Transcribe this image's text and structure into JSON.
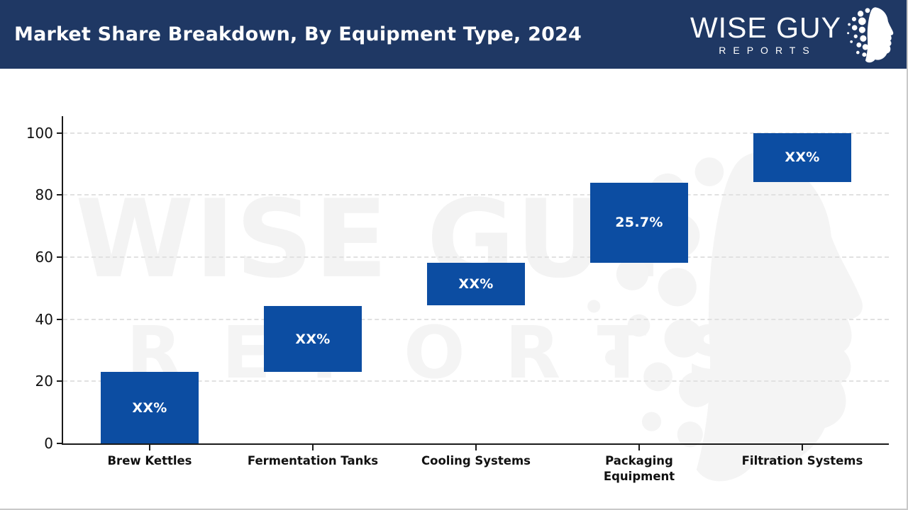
{
  "header": {
    "title": "Market Share Breakdown, By Equipment Type, 2024",
    "logo": {
      "line1": "WISE GUY",
      "line2": "REPORTS"
    }
  },
  "watermark": {
    "line1": "WISE GUY",
    "line2": "REPORTS"
  },
  "colors": {
    "header_bg": "#1f3864",
    "bar": "#0c4da2",
    "bar_label": "#ffffff",
    "axis": "#1a1a1a",
    "grid": "#e1e1e1",
    "watermark": "#f4f4f4"
  },
  "chart_data": {
    "type": "bar",
    "subtype": "waterfall",
    "title": "Market Share Breakdown, By Equipment Type, 2024",
    "xlabel": "",
    "ylabel": "",
    "categories": [
      "Brew Kettles",
      "Fermentation Tanks",
      "Cooling Systems",
      "Packaging Equipment",
      "Filtration Systems"
    ],
    "tick_labels": [
      "Brew Kettles",
      "Fermentation Tanks",
      "Cooling Systems",
      "Packaging\nEquipment",
      "Filtration Systems"
    ],
    "segments": [
      {
        "category": "Brew Kettles",
        "start": 0,
        "end": 23,
        "label": "XX%"
      },
      {
        "category": "Fermentation Tanks",
        "start": 23,
        "end": 44.2,
        "label": "XX%"
      },
      {
        "category": "Cooling Systems",
        "start": 44.4,
        "end": 58.2,
        "label": "XX%"
      },
      {
        "category": "Packaging Equipment",
        "start": 58.2,
        "end": 83.9,
        "label": "25.7%"
      },
      {
        "category": "Filtration Systems",
        "start": 84.2,
        "end": 100,
        "label": "XX%"
      }
    ],
    "y_ticks": [
      0,
      20,
      40,
      60,
      80,
      100
    ],
    "ylim": [
      0,
      105
    ],
    "grid": "horizontal dashed",
    "legend": "none",
    "bar_color": "#0c4da2",
    "value_label_color": "#ffffff"
  }
}
